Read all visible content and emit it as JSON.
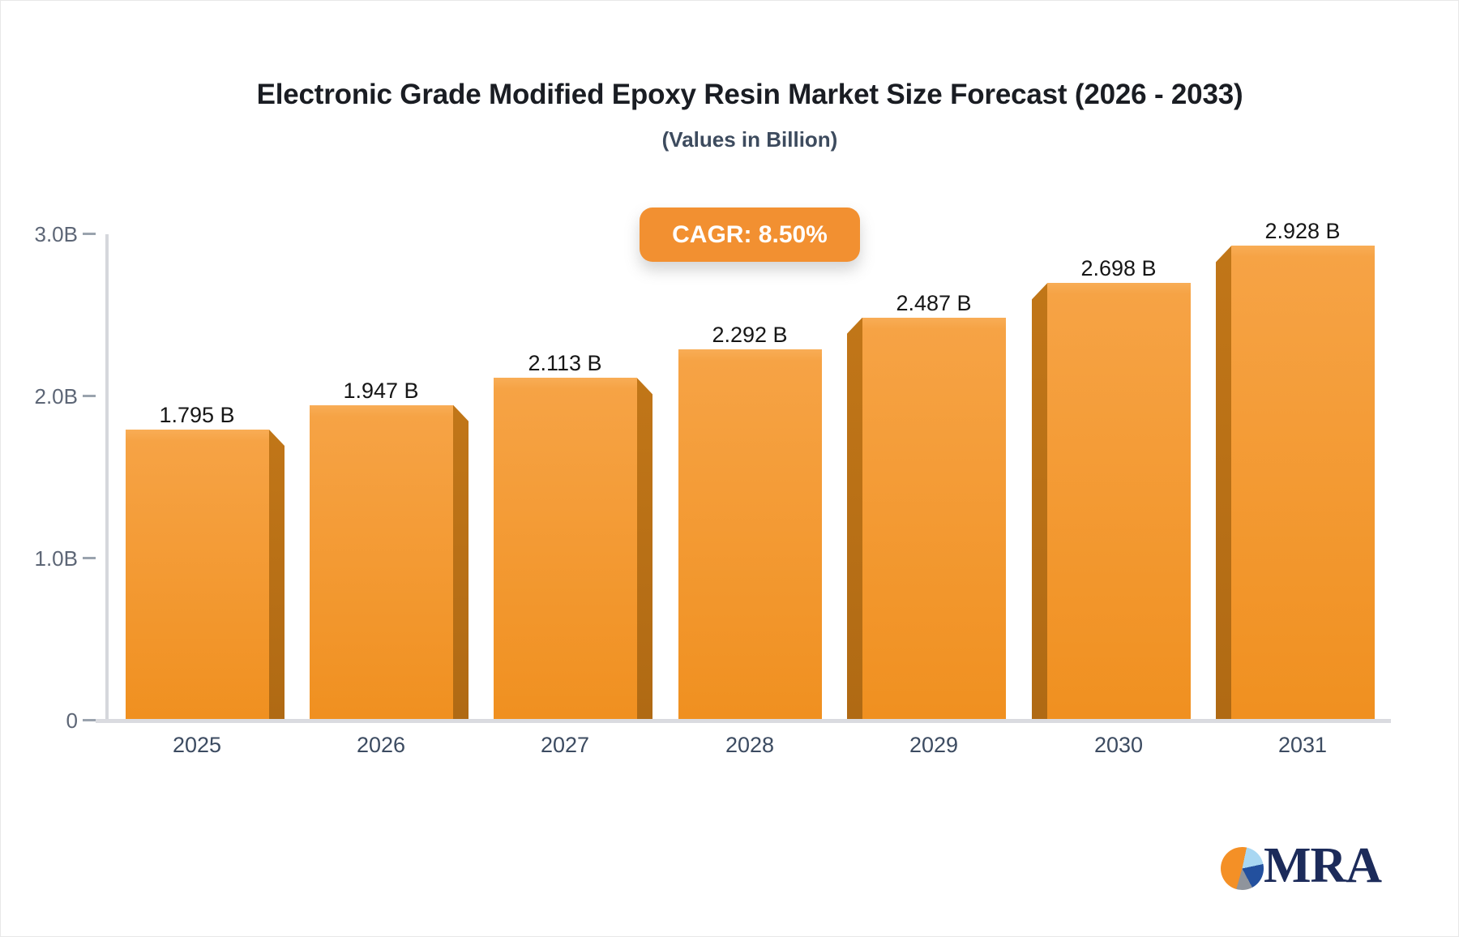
{
  "title": "Electronic Grade Modified Epoxy Resin Market Size Forecast (2026 - 2033)",
  "subtitle": "(Values in Billion)",
  "badge": {
    "label": "CAGR: 8.50%"
  },
  "y_axis": {
    "tick_labels": [
      "3.0B",
      "2.0B",
      "1.0B",
      "0"
    ],
    "tick_values": [
      3.0,
      2.0,
      1.0,
      0
    ]
  },
  "chart_data": {
    "type": "bar",
    "title": "Electronic Grade Modified Epoxy Resin Market Size Forecast (2026 - 2033)",
    "subtitle": "(Values in Billion)",
    "categories": [
      "2025",
      "2026",
      "2027",
      "2028",
      "2029",
      "2030",
      "2031"
    ],
    "values": [
      1.795,
      1.947,
      2.113,
      2.292,
      2.487,
      2.698,
      2.928
    ],
    "value_labels": [
      "1.795 B",
      "1.947 B",
      "2.113 B",
      "2.292 B",
      "2.487 B",
      "2.698 B",
      "2.928 B"
    ],
    "cagr": "8.50%",
    "xlabel": "",
    "ylabel": "",
    "ylim": [
      0,
      3.0
    ],
    "grid": false,
    "legend": false
  },
  "colors": {
    "bar_face_top": "#f8ad56",
    "bar_face_mid": "#f6a345",
    "bar_face_bottom": "#f09020",
    "bar_side_top": "#c17618",
    "bar_side_bottom": "#b06a14",
    "badge_bg": "#f29031",
    "title_text": "#1a1d23",
    "subtitle_text": "#3d4b5e",
    "axis_gray": "#d5d7dc",
    "logo_navy": "#1c2b5a",
    "logo_orange": "#f49026",
    "logo_lightblue": "#a9d7f2",
    "logo_blue": "#23509e",
    "logo_gray": "#8f949c"
  },
  "logo": {
    "text": "MRA"
  }
}
